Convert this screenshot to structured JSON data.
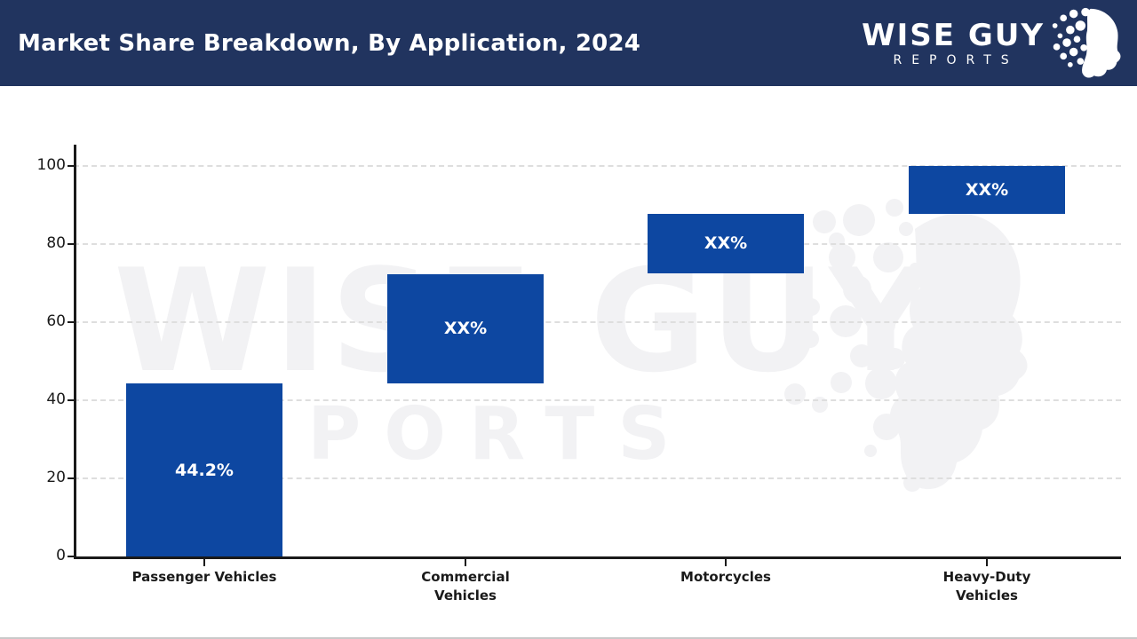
{
  "header": {
    "title": "Market Share Breakdown, By Application, 2024",
    "logo": {
      "line1": "WISE GUY",
      "line2": "REPORTS",
      "face_icon": "dotted-head-profile"
    }
  },
  "watermark": {
    "line1": "WISE GUY",
    "line2": "REPORTS",
    "face_icon": "dotted-head-profile"
  },
  "colors": {
    "header_bg": "#21345f",
    "bar": "#0d47a1",
    "grid": "#dedede",
    "axis": "#1a1a1a",
    "watermark": "#f2f2f4",
    "frame_line": "#c9c9c9"
  },
  "chart_data": {
    "type": "bar",
    "subtype": "floating-waterfall",
    "title": "Market Share Breakdown, By Application, 2024",
    "categories": [
      "Passenger Vehicles",
      "Commercial\nVehicles",
      "Motorcycles",
      "Heavy-Duty\nVehicles"
    ],
    "segments": [
      {
        "category": "Passenger Vehicles",
        "from": 0,
        "to": 44.2,
        "label": "44.2%"
      },
      {
        "category": "Commercial Vehicles",
        "from": 44.2,
        "to": 72.3,
        "label": "XX%"
      },
      {
        "category": "Motorcycles",
        "from": 72.5,
        "to": 87.6,
        "label": "XX%"
      },
      {
        "category": "Heavy-Duty Vehicles",
        "from": 87.6,
        "to": 99.8,
        "label": "XX%"
      }
    ],
    "ylim": [
      0,
      100
    ],
    "yticks": [
      0,
      20,
      40,
      60,
      80,
      100
    ],
    "xlabel": "",
    "ylabel": "",
    "grid": "horizontal-dashed",
    "legend": "none",
    "bar_color": "#0d47a1",
    "bar_label_color": "#ffffff"
  }
}
